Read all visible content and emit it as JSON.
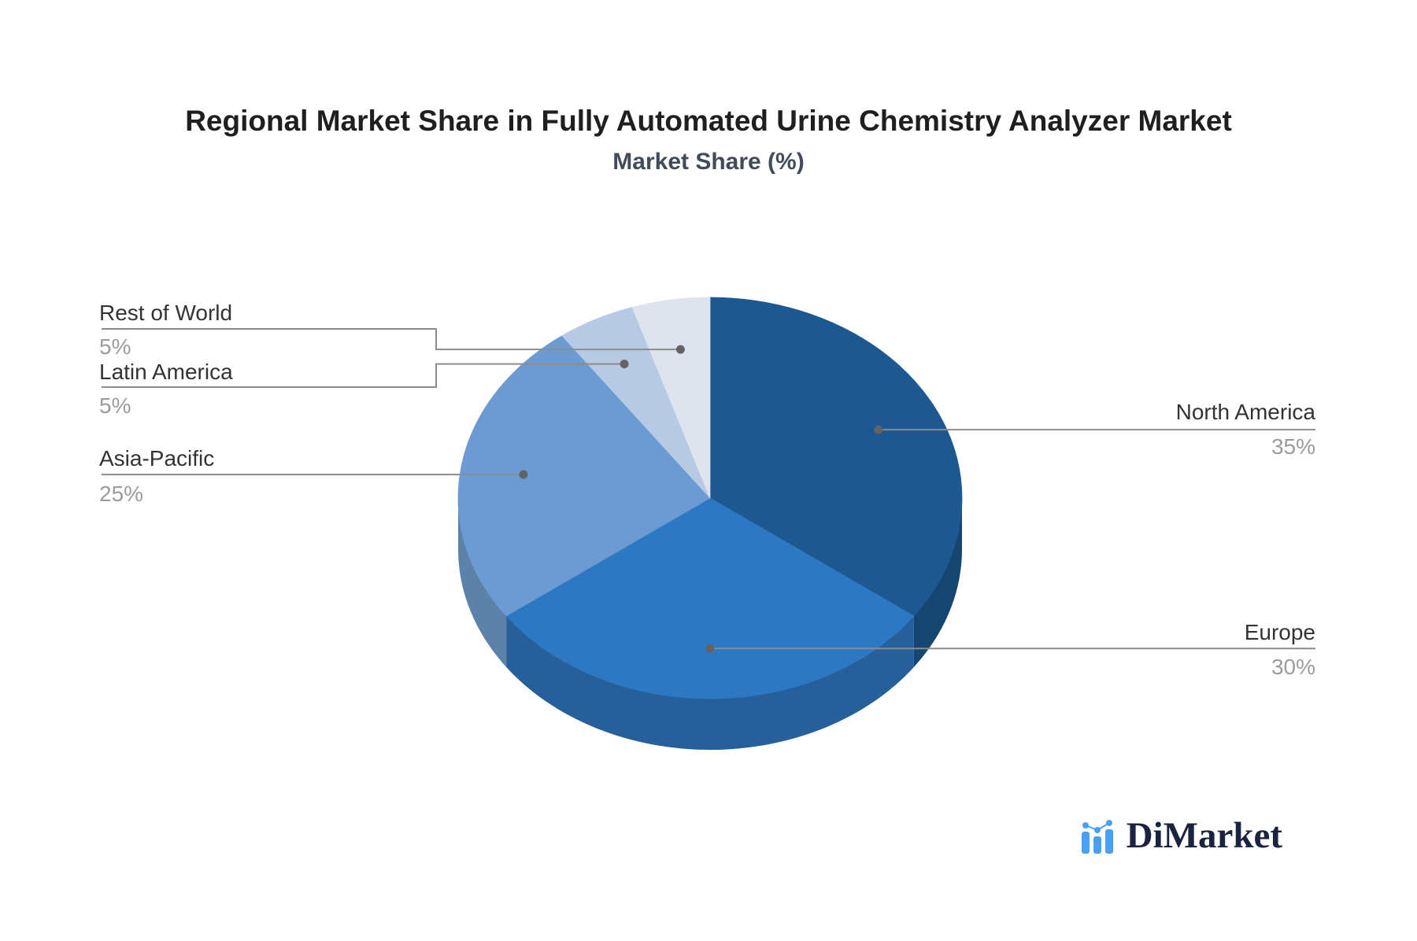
{
  "header": {
    "title": "Regional Market Share in Fully Automated Urine Chemistry Analyzer Market",
    "subtitle": "Market Share (%)"
  },
  "chart_data": {
    "type": "pie",
    "style": "3d",
    "unit": "%",
    "direction": "clockwise",
    "start_angle_deg": 0,
    "title": "Regional Market Share in Fully Automated Urine Chemistry Analyzer Market",
    "subtitle": "Market Share (%)",
    "legend_position": "callout-labels",
    "segments": [
      {
        "label": "North America",
        "value": 35,
        "pct_label": "35%",
        "color": "#1e5890",
        "side_color": "#164570"
      },
      {
        "label": "Europe",
        "value": 30,
        "pct_label": "30%",
        "color": "#2d78c2",
        "side_color": "#265f99"
      },
      {
        "label": "Asia-Pacific",
        "value": 25,
        "pct_label": "25%",
        "color": "#6b9bd2",
        "side_color": "#5d82a9"
      },
      {
        "label": "Latin America",
        "value": 5,
        "pct_label": "5%",
        "color": "#b6cae3",
        "side_color": "#9cb2cc"
      },
      {
        "label": "Rest of World",
        "value": 5,
        "pct_label": "5%",
        "color": "#dee4ee",
        "side_color": "#c2c9d6"
      }
    ],
    "callout_line_color": "#8c8c8c",
    "callout_dot_color": "#636363",
    "label_color": "#333333",
    "value_color": "#9b9b9b"
  },
  "branding": {
    "logo_text": "DiMarket",
    "logo_icon": "bar-line-chart-icon",
    "logo_text_color": "#1a2440",
    "logo_accent_color": "#4ba1f1"
  }
}
